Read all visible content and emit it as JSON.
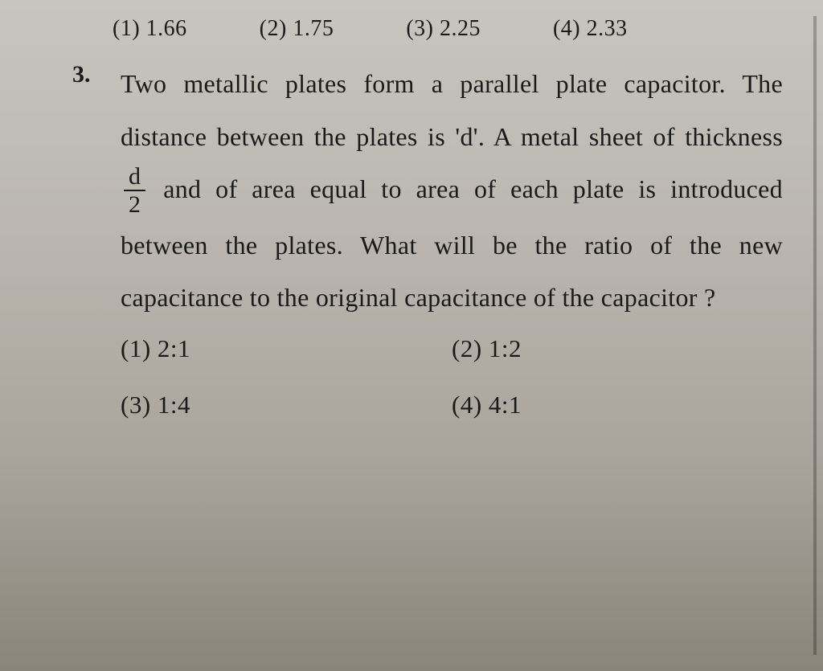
{
  "background_gradient": [
    "#c8c5c0",
    "#b8b4ad",
    "#a8a39a",
    "#8a847a"
  ],
  "text_color": "#1a1a1a",
  "font_family": "Times New Roman",
  "prev_options": {
    "items": [
      {
        "marker": "(1)",
        "value": "1.66"
      },
      {
        "marker": "(2)",
        "value": "1.75"
      },
      {
        "marker": "(3)",
        "value": "2.25"
      },
      {
        "marker": "(4)",
        "value": "2.33"
      }
    ]
  },
  "question": {
    "number": "3.",
    "text_part1": "Two metallic plates form a parallel plate capacitor. The distance between the plates is 'd'. A metal sheet of thickness",
    "fraction_num": "d",
    "fraction_den": "2",
    "text_part2": "and of area equal to area of each plate is introduced between the plates. What will be the ratio of the new capacitance to the original capacitance of the capacitor ?"
  },
  "answer_options": {
    "items": [
      {
        "marker": "(1)",
        "value": "2:1"
      },
      {
        "marker": "(2)",
        "value": "1:2"
      },
      {
        "marker": "(3)",
        "value": "1:4"
      },
      {
        "marker": "(4)",
        "value": "4:1"
      }
    ]
  },
  "font_sizes": {
    "prev_options": 28,
    "question_number": 30,
    "question_body": 32,
    "answer_options": 31,
    "fraction": 30
  }
}
